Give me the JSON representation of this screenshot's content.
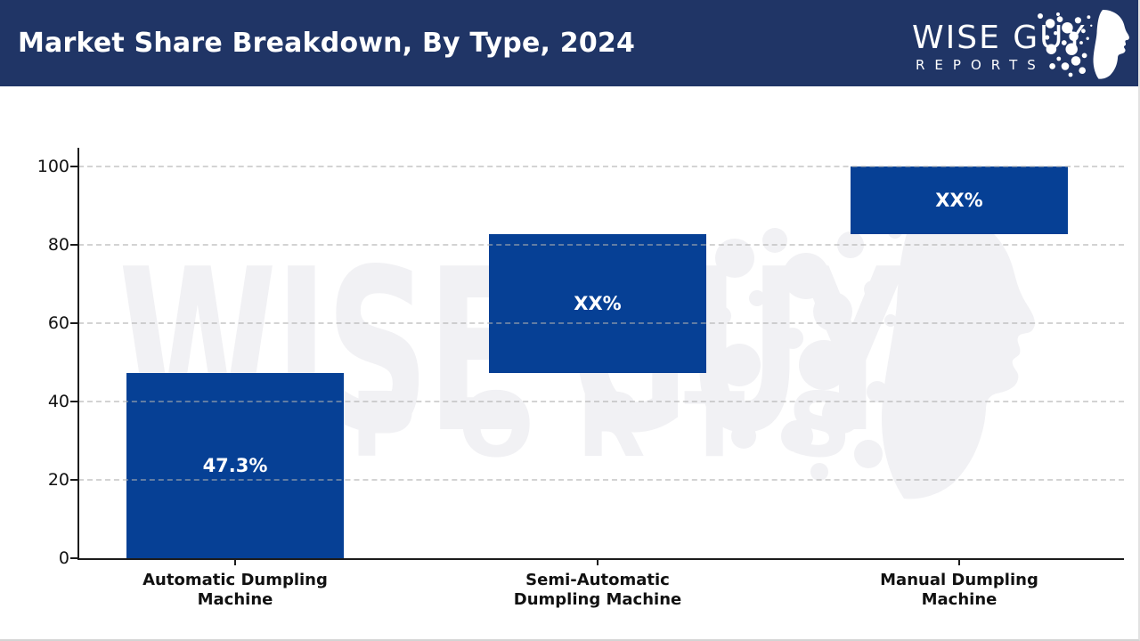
{
  "header": {
    "title": "Market Share Breakdown, By Type, 2024",
    "logo": {
      "brand_top": "WISE GUY",
      "brand_bottom": "REPORTS"
    }
  },
  "watermark": {
    "line1": "WISE GUY",
    "line2": "REPORTS"
  },
  "chart_data": {
    "type": "bar",
    "subtype": "floating-segment-breakdown",
    "title": "Market Share Breakdown, By Type, 2024",
    "categories": [
      {
        "lines": [
          "Automatic Dumpling",
          "Machine"
        ]
      },
      {
        "lines": [
          "Semi-Automatic",
          "Dumpling Machine"
        ]
      },
      {
        "lines": [
          "Manual Dumpling",
          "Machine"
        ]
      }
    ],
    "segments": [
      {
        "category_index": 0,
        "from": 0,
        "to": 47.3,
        "label": "47.3%"
      },
      {
        "category_index": 1,
        "from": 47.3,
        "to": 82.7,
        "label": "XX%"
      },
      {
        "category_index": 2,
        "from": 82.7,
        "to": 100,
        "label": "XX%"
      }
    ],
    "xlabel": "",
    "ylabel": "",
    "ylim": [
      0,
      100
    ],
    "yticks": [
      0,
      20,
      40,
      60,
      80,
      100
    ],
    "grid": {
      "axis": "y",
      "style": "dashed",
      "drawn_above_bars": true
    },
    "legend": "none",
    "colors": {
      "bar": "#064095",
      "bar_label": "#ffffff",
      "header_bg": "#203566",
      "watermark": "#f1f1f4",
      "axis": "#1c1c1c",
      "tick_label": "#111111"
    }
  }
}
